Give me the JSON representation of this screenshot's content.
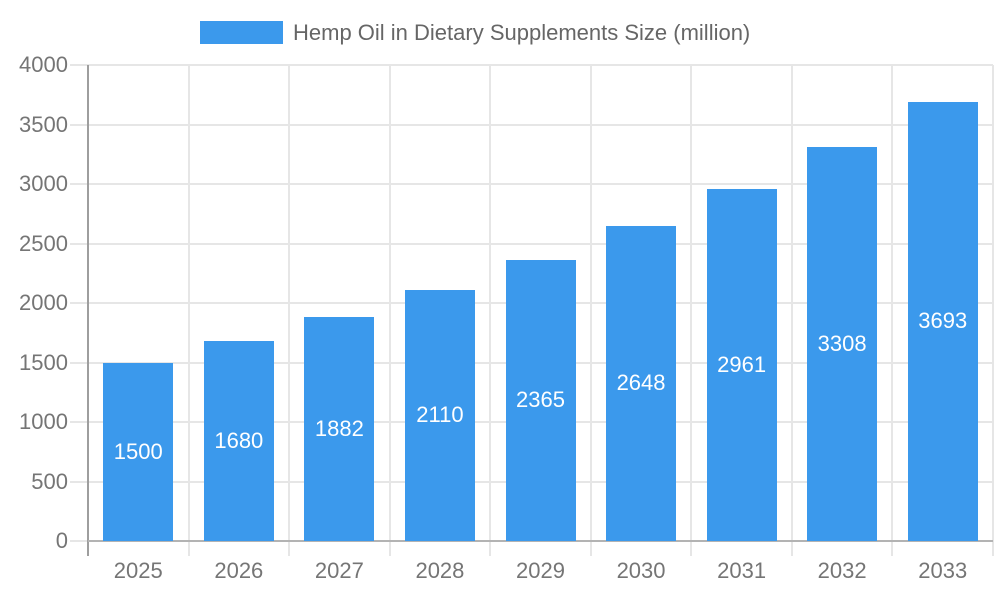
{
  "legend": {
    "label": "Hemp Oil in Dietary Supplements Size (million)"
  },
  "chart_data": {
    "type": "bar",
    "title": "Hemp Oil in Dietary Supplements Size (million)",
    "categories": [
      "2025",
      "2026",
      "2027",
      "2028",
      "2029",
      "2030",
      "2031",
      "2032",
      "2033"
    ],
    "series": [
      {
        "name": "Hemp Oil in Dietary Supplements Size (million)",
        "values": [
          1500,
          1680,
          1882,
          2110,
          2365,
          2648,
          2961,
          3308,
          3693
        ]
      }
    ],
    "bar_labels": [
      "1500",
      "1680",
      "1882",
      "2110",
      "2365",
      "2648",
      "2961",
      "3308",
      "3693"
    ],
    "xlabel": "",
    "ylabel": "",
    "ylim": [
      0,
      4000
    ],
    "ytick_step": 500,
    "yticks": [
      0,
      500,
      1000,
      1500,
      2000,
      2500,
      3000,
      3500,
      4000
    ],
    "grid": true,
    "legend_position": "top",
    "colors": {
      "bar": "#3B99EC",
      "bar_label_text": "#FFFFFF",
      "legend_text": "#666666",
      "axis_label": "#757575",
      "gridline": "#E6E6E6",
      "y_axis_line": "#9E9E9E",
      "x_axis_line": "#B3B3B3"
    }
  }
}
